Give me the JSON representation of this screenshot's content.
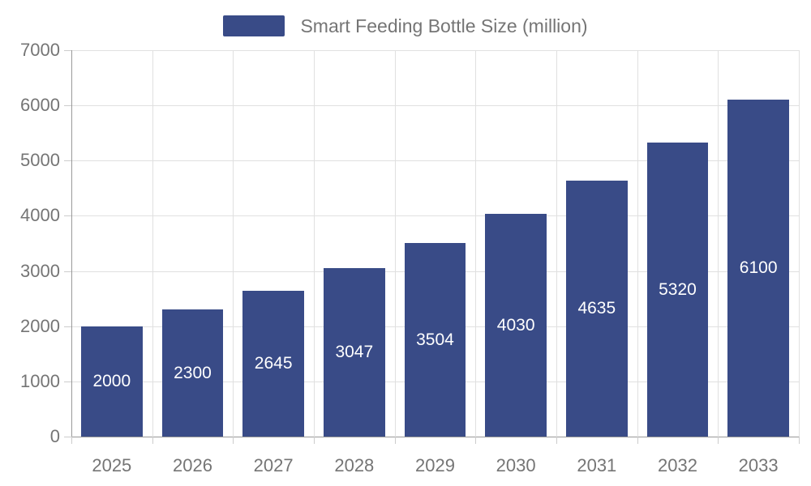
{
  "legend": {
    "label": "Smart Feeding Bottle Size (million)"
  },
  "chart_data": {
    "type": "bar",
    "title": "Smart Feeding Bottle Size (million)",
    "series_name": "Smart Feeding Bottle Size (million)",
    "categories": [
      "2025",
      "2026",
      "2027",
      "2028",
      "2029",
      "2030",
      "2031",
      "2032",
      "2033"
    ],
    "values": [
      2000,
      2300,
      2645,
      3047,
      3504,
      4030,
      4635,
      5320,
      6100
    ],
    "xlabel": "",
    "ylabel": "",
    "ylim": [
      0,
      7000
    ],
    "y_ticks": [
      0,
      1000,
      2000,
      3000,
      4000,
      5000,
      6000,
      7000
    ],
    "grid": true,
    "legend_position": "top",
    "bar_labels_visible": true,
    "colors": {
      "bar": "#394B87",
      "bar_label_text": "#FFFFFF",
      "axis_text": "#757575",
      "grid_line": "#E0E0E0",
      "axis_line": "#999999",
      "tick_mark": "#CCCCCC",
      "background": "#FFFFFF"
    }
  }
}
